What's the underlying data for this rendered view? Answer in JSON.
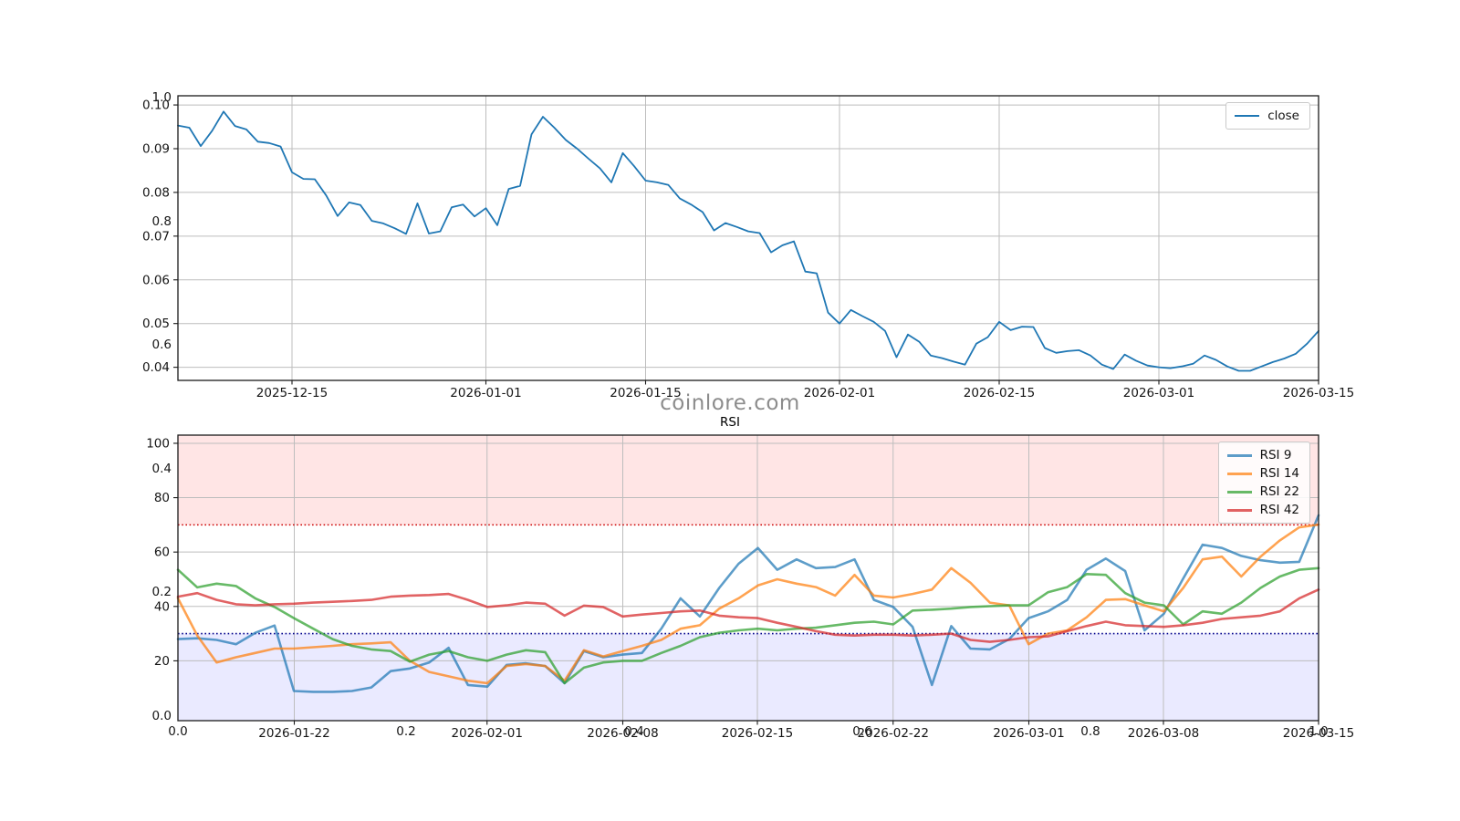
{
  "watermark": "coinlore.com",
  "rsi_title": "RSI",
  "colors": {
    "close": "#1f77b4",
    "rsi9": "#1f77b4",
    "rsi14": "#ff7f0e",
    "rsi22": "#2ca02c",
    "rsi42": "#d62728",
    "overbought_band": "rgba(255,0,0,0.10)",
    "oversold_band": "rgba(80,80,255,0.12)",
    "overbought_line": "#cc0000",
    "oversold_line": "#00008b",
    "grid": "#bdbdbd",
    "spine": "#1a1a1a"
  },
  "overlay": {
    "y_ticks": [
      "1.0",
      "0.8",
      "0.6",
      "0.4",
      "0.2",
      "0.0"
    ],
    "x_ticks": [
      "0.0",
      "0.2",
      "0.4",
      "0.6",
      "0.8",
      "1.0"
    ]
  },
  "chart_data": [
    {
      "type": "line",
      "mount": "price-chart",
      "title": "",
      "xlabel": "",
      "ylabel": "",
      "grid": true,
      "legend_position": "upper right",
      "legend": [
        {
          "label": "close",
          "color": "#1f77b4",
          "line_width": 2,
          "opacity": 1
        }
      ],
      "ylim": [
        0.037,
        0.1021
      ],
      "y_ticks": [
        {
          "v": 0.1,
          "label": "0.10"
        },
        {
          "v": 0.09,
          "label": "0.09"
        },
        {
          "v": 0.08,
          "label": "0.08"
        },
        {
          "v": 0.07,
          "label": "0.07"
        },
        {
          "v": 0.06,
          "label": "0.06"
        },
        {
          "v": 0.05,
          "label": "0.05"
        },
        {
          "v": 0.04,
          "label": "0.04"
        }
      ],
      "x_ticks": [
        {
          "label": "2025-12-15",
          "pos": 0.1
        },
        {
          "label": "2026-01-01",
          "pos": 0.27
        },
        {
          "label": "2026-01-15",
          "pos": 0.41
        },
        {
          "label": "2026-02-01",
          "pos": 0.58
        },
        {
          "label": "2026-02-15",
          "pos": 0.72
        },
        {
          "label": "2026-03-01",
          "pos": 0.86
        },
        {
          "label": "2026-03-15",
          "pos": 1.0
        }
      ],
      "series": [
        {
          "name": "close",
          "color": "#1f77b4",
          "width": 1.8,
          "opacity": 1,
          "values": [
            0.0953,
            0.0948,
            0.0906,
            0.0941,
            0.0985,
            0.0952,
            0.0944,
            0.0916,
            0.0913,
            0.0905,
            0.0846,
            0.0831,
            0.083,
            0.0793,
            0.0746,
            0.0777,
            0.0771,
            0.0735,
            0.0729,
            0.0718,
            0.0705,
            0.0775,
            0.0706,
            0.0711,
            0.0766,
            0.0772,
            0.0745,
            0.0764,
            0.0725,
            0.0808,
            0.0815,
            0.0933,
            0.0973,
            0.0948,
            0.092,
            0.09,
            0.0877,
            0.0855,
            0.0823,
            0.089,
            0.086,
            0.0827,
            0.0823,
            0.0817,
            0.0786,
            0.0772,
            0.0755,
            0.0713,
            0.073,
            0.0721,
            0.0711,
            0.0707,
            0.0663,
            0.0679,
            0.0688,
            0.0619,
            0.0615,
            0.0525,
            0.05,
            0.0531,
            0.0517,
            0.0504,
            0.0483,
            0.0423,
            0.0475,
            0.0458,
            0.0427,
            0.0421,
            0.0413,
            0.0406,
            0.0454,
            0.0469,
            0.0504,
            0.0485,
            0.0493,
            0.0492,
            0.0444,
            0.0433,
            0.0437,
            0.0439,
            0.0427,
            0.0406,
            0.0396,
            0.0429,
            0.0415,
            0.0404,
            0.04,
            0.0398,
            0.0402,
            0.0408,
            0.0427,
            0.0417,
            0.0402,
            0.0392,
            0.0392,
            0.0402,
            0.0412,
            0.042,
            0.0431,
            0.0454,
            0.0483
          ]
        }
      ]
    },
    {
      "type": "line",
      "mount": "rsi-chart",
      "title": "RSI",
      "xlabel": "",
      "ylabel": "",
      "grid": true,
      "legend_position": "upper right",
      "legend": [
        {
          "label": "RSI 9",
          "color": "#1f77b4",
          "line_width": 3,
          "opacity": 0.72
        },
        {
          "label": "RSI 14",
          "color": "#ff7f0e",
          "line_width": 3,
          "opacity": 0.72
        },
        {
          "label": "RSI 22",
          "color": "#2ca02c",
          "line_width": 3,
          "opacity": 0.72
        },
        {
          "label": "RSI 42",
          "color": "#d62728",
          "line_width": 3,
          "opacity": 0.72
        }
      ],
      "ylim": [
        -2,
        103
      ],
      "bands": [
        {
          "from": 70,
          "to": 103,
          "color": "rgba(255,0,0,0.10)"
        },
        {
          "from": -2,
          "to": 30,
          "color": "rgba(80,80,255,0.12)"
        }
      ],
      "hlines": [
        {
          "v": 70,
          "color": "#cc0000"
        },
        {
          "v": 30,
          "color": "#00008b"
        }
      ],
      "y_ticks": [
        {
          "v": 100,
          "label": "100"
        },
        {
          "v": 80,
          "label": "80"
        },
        {
          "v": 60,
          "label": "60"
        },
        {
          "v": 40,
          "label": "40"
        },
        {
          "v": 20,
          "label": "20"
        }
      ],
      "x_ticks": [
        {
          "label": "2026-01-22",
          "pos": 0.102
        },
        {
          "label": "2026-02-01",
          "pos": 0.271
        },
        {
          "label": "2026-02-08",
          "pos": 0.39
        },
        {
          "label": "2026-02-15",
          "pos": 0.508
        },
        {
          "label": "2026-02-22",
          "pos": 0.627
        },
        {
          "label": "2026-03-01",
          "pos": 0.746
        },
        {
          "label": "2026-03-08",
          "pos": 0.864
        },
        {
          "label": "2026-03-15",
          "pos": 1.0
        }
      ],
      "series": [
        {
          "name": "RSI 9",
          "color": "#1f77b4",
          "width": 2.6,
          "opacity": 0.72,
          "values": [
            28.0,
            28.3,
            27.7,
            26.1,
            30.3,
            33.0,
            8.9,
            8.6,
            8.6,
            8.9,
            10.2,
            16.2,
            17.2,
            19.4,
            24.8,
            11.1,
            10.5,
            18.5,
            19.1,
            18.1,
            11.8,
            23.6,
            21.3,
            22.3,
            22.9,
            31.8,
            43.0,
            36.3,
            46.8,
            55.7,
            61.5,
            53.5,
            57.3,
            54.1,
            54.5,
            57.3,
            42.4,
            39.8,
            32.5,
            11.1,
            32.8,
            24.5,
            24.2,
            28.0,
            35.7,
            38.2,
            42.4,
            53.5,
            57.6,
            53.0,
            31.2,
            37.3,
            50.3,
            62.7,
            61.5,
            58.6,
            57.0,
            56.1,
            56.4,
            73.5
          ]
        },
        {
          "name": "RSI 14",
          "color": "#ff7f0e",
          "width": 2.6,
          "opacity": 0.72,
          "values": [
            43.0,
            29.3,
            19.4,
            21.3,
            22.9,
            24.5,
            24.5,
            25.0,
            25.5,
            26.1,
            26.4,
            26.8,
            20.0,
            15.9,
            14.3,
            12.7,
            11.8,
            18.1,
            18.8,
            18.1,
            12.7,
            23.9,
            21.6,
            23.6,
            25.5,
            27.7,
            31.8,
            33.1,
            39.2,
            43.0,
            47.7,
            50.0,
            48.4,
            47.1,
            44.0,
            51.6,
            44.0,
            43.3,
            44.6,
            46.2,
            54.1,
            48.7,
            41.4,
            40.4,
            26.1,
            30.0,
            31.2,
            36.0,
            42.4,
            42.7,
            40.4,
            38.2,
            46.8,
            57.3,
            58.3,
            51.0,
            58.3,
            64.3,
            69.1,
            70.1
          ]
        },
        {
          "name": "RSI 22",
          "color": "#2ca02c",
          "width": 2.6,
          "opacity": 0.72,
          "values": [
            53.5,
            47.0,
            48.4,
            47.5,
            43.0,
            39.8,
            35.7,
            31.8,
            28.0,
            25.5,
            24.2,
            23.6,
            19.7,
            22.3,
            23.6,
            21.3,
            20.0,
            22.3,
            23.9,
            23.2,
            11.8,
            17.5,
            19.4,
            20.0,
            20.0,
            22.9,
            25.5,
            28.7,
            30.3,
            31.2,
            31.8,
            31.2,
            31.8,
            32.2,
            33.1,
            34.0,
            34.4,
            33.4,
            38.5,
            38.8,
            39.2,
            39.8,
            40.1,
            40.4,
            40.4,
            45.2,
            47.1,
            51.9,
            51.6,
            44.9,
            41.4,
            40.4,
            33.4,
            38.2,
            37.3,
            41.4,
            46.8,
            51.0,
            53.5,
            54.1
          ]
        },
        {
          "name": "RSI 42",
          "color": "#d62728",
          "width": 2.6,
          "opacity": 0.72,
          "values": [
            43.6,
            44.9,
            42.4,
            40.8,
            40.4,
            40.8,
            41.0,
            41.4,
            41.7,
            42.0,
            42.4,
            43.6,
            44.0,
            44.2,
            44.6,
            42.4,
            39.8,
            40.4,
            41.4,
            41.0,
            36.6,
            40.3,
            39.8,
            36.3,
            37.0,
            37.6,
            38.2,
            38.5,
            36.6,
            36.0,
            35.7,
            34.0,
            32.5,
            30.9,
            29.6,
            29.3,
            29.6,
            29.6,
            29.3,
            29.6,
            30.0,
            27.7,
            27.0,
            27.7,
            28.7,
            29.0,
            30.9,
            32.8,
            34.4,
            33.1,
            32.8,
            32.5,
            33.1,
            34.0,
            35.4,
            36.0,
            36.6,
            38.2,
            43.0,
            46.2
          ]
        }
      ]
    }
  ]
}
